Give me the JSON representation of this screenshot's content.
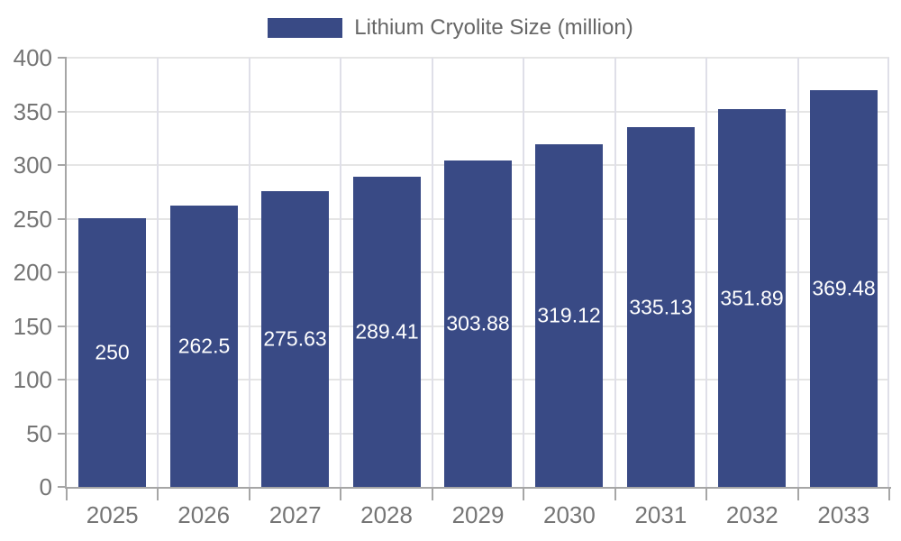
{
  "chart_data": {
    "type": "bar",
    "title": "Lithium Cryolite Size (million)",
    "categories": [
      "2025",
      "2026",
      "2027",
      "2028",
      "2029",
      "2030",
      "2031",
      "2032",
      "2033"
    ],
    "values": [
      250,
      262.5,
      275.63,
      289.41,
      303.88,
      319.12,
      335.13,
      351.89,
      369.48
    ],
    "value_labels": [
      "250",
      "262.5",
      "275.63",
      "289.41",
      "303.88",
      "319.12",
      "335.13",
      "351.89",
      "369.48"
    ],
    "xlabel": "",
    "ylabel": "",
    "ylim": [
      0,
      400
    ],
    "y_ticks": [
      0,
      50,
      100,
      150,
      200,
      250,
      300,
      350,
      400
    ],
    "grid": true,
    "legend_position": "top-center",
    "value_label_position": "inside-center",
    "colors": {
      "bar": "#394a85",
      "value_label": "#ffffff",
      "axis_label": "#757575",
      "legend_text": "#666666",
      "grid_h": "#e5e5e5",
      "grid_v": "#dfdfe8",
      "axis_line": "#a6a6a6",
      "background": "#ffffff"
    }
  }
}
